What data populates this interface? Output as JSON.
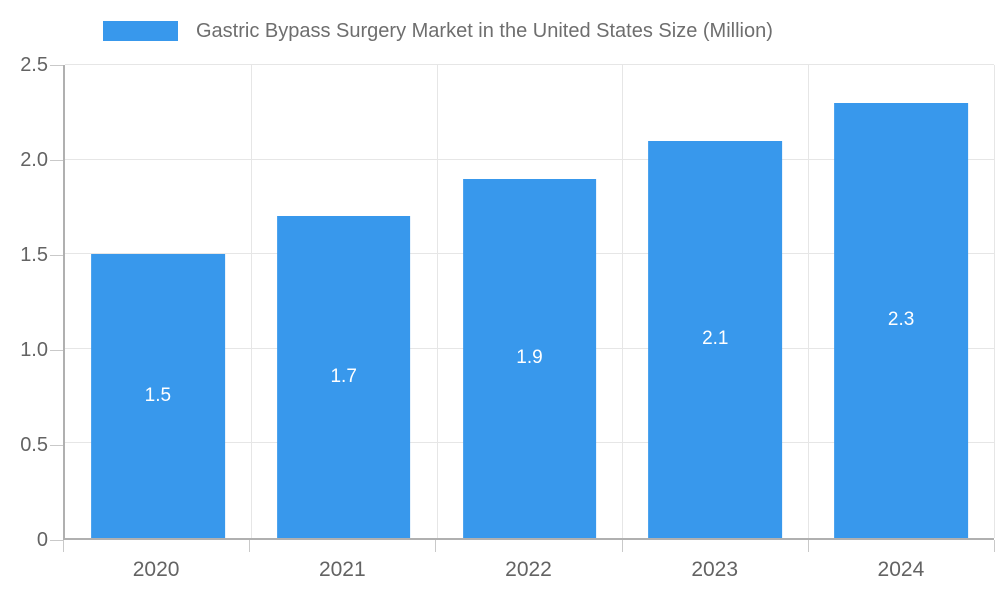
{
  "legend": {
    "label": "Gastric Bypass Surgery Market in the United States Size (Million)",
    "swatch_color": "#3898ec"
  },
  "chart_data": {
    "type": "bar",
    "title": "Gastric Bypass Surgery Market in the United States Size (Million)",
    "categories": [
      "2020",
      "2021",
      "2022",
      "2023",
      "2024"
    ],
    "values": [
      1.5,
      1.7,
      1.9,
      2.1,
      2.3
    ],
    "bar_value_labels": [
      "1.5",
      "1.7",
      "1.9",
      "2.1",
      "2.3"
    ],
    "xlabel": "",
    "ylabel": "",
    "ylim": [
      0,
      2.5
    ],
    "y_ticks": [
      0,
      0.5,
      1.0,
      1.5,
      2.0,
      2.5
    ],
    "y_tick_labels": [
      "0",
      "0.5",
      "1.0",
      "1.5",
      "2.0",
      "2.5"
    ],
    "grid": true,
    "legend_position": "top",
    "bar_width_fraction": 0.72
  },
  "colors": {
    "bar": "#3898ec",
    "bar_label": "#ffffff",
    "gridline": "#e6e6e6",
    "axis_line": "#b0b0b0",
    "tick_mark": "#c9c9c9",
    "tick_label": "#636363",
    "title": "#6e6e6e",
    "background": "#ffffff"
  }
}
